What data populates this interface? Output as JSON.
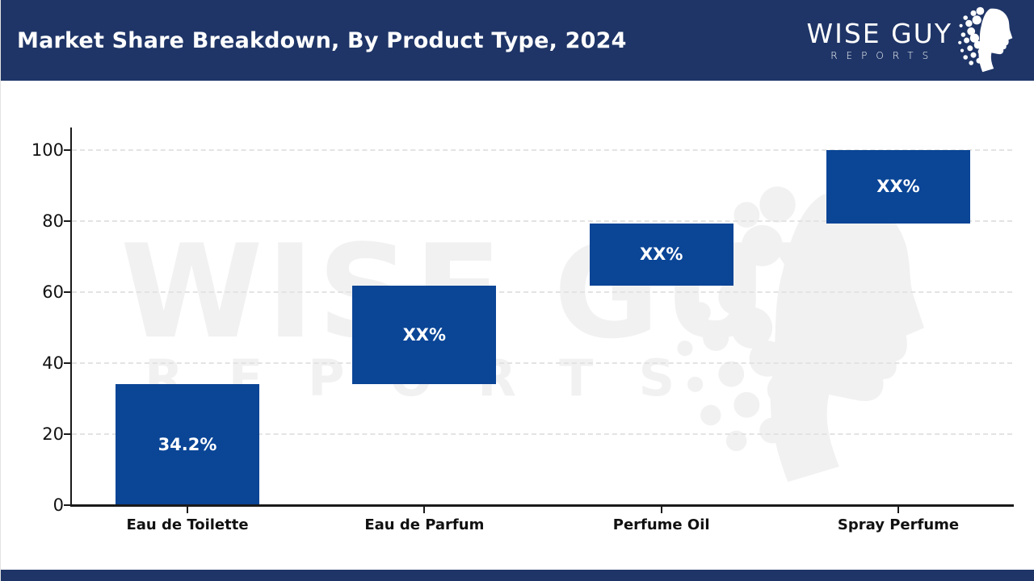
{
  "header": {
    "title": "Market Share Breakdown, By Product Type, 2024",
    "logo": {
      "line1": "WISE GUY",
      "line2": "REPORTS"
    }
  },
  "watermark": {
    "line1": "WISE GUY",
    "line2": "REPORTS"
  },
  "colors": {
    "header_bg": "#1f3567",
    "footer_bg": "#1f3567",
    "bar": "#0a4596",
    "bar_label": "#ffffff",
    "grid": "#e3e3e3",
    "axis": "#1a1a1a",
    "watermark": "#f1f1f1"
  },
  "chart_data": {
    "type": "bar",
    "variant": "waterfall",
    "title": "Market Share Breakdown, By Product Type, 2024",
    "categories": [
      "Eau de Toilette",
      "Eau de Parfum",
      "Perfume Oil",
      "Spray Perfume"
    ],
    "segments": [
      {
        "category": "Eau de Toilette",
        "start": 0,
        "end": 34.2,
        "label": "34.2%"
      },
      {
        "category": "Eau de Parfum",
        "start": 34.2,
        "end": 61.8,
        "label": "XX%"
      },
      {
        "category": "Perfume Oil",
        "start": 61.8,
        "end": 79.4,
        "label": "XX%"
      },
      {
        "category": "Spray Perfume",
        "start": 79.4,
        "end": 100,
        "label": "XX%"
      }
    ],
    "ylim": [
      0,
      100
    ],
    "yticks": [
      0,
      20,
      40,
      60,
      80,
      100
    ],
    "xlabel": "",
    "ylabel": "",
    "grid": "horizontal-dashed",
    "legend": "none"
  }
}
